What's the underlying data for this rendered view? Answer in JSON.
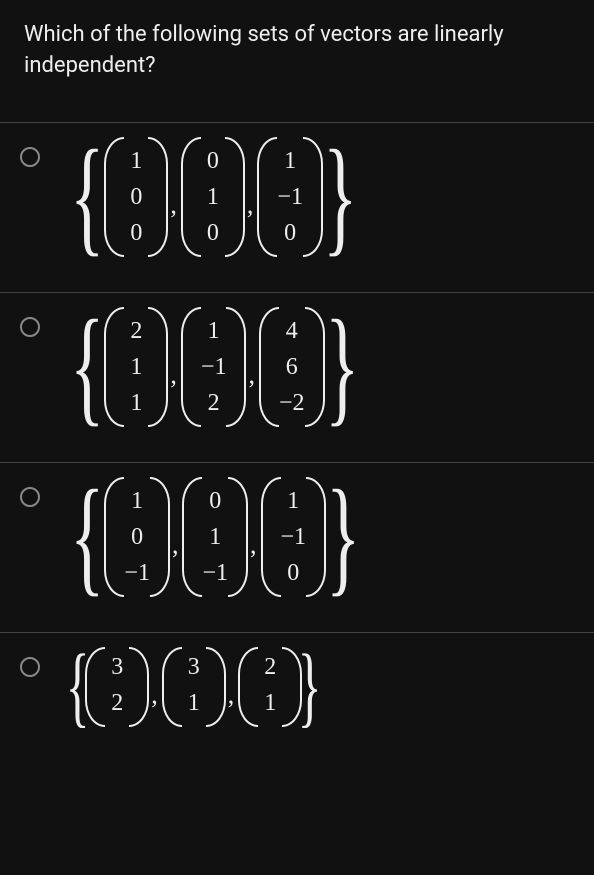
{
  "question": "Which of the following sets of vectors are linearly independent?",
  "options": [
    {
      "vectors": [
        [
          "1",
          "0",
          "0"
        ],
        [
          "0",
          "1",
          "0"
        ],
        [
          "1",
          "−1",
          "0"
        ]
      ]
    },
    {
      "vectors": [
        [
          "2",
          "1",
          "1"
        ],
        [
          "1",
          "−1",
          "2"
        ],
        [
          "4",
          "6",
          "−2"
        ]
      ]
    },
    {
      "vectors": [
        [
          "1",
          "0",
          "−1"
        ],
        [
          "0",
          "1",
          "−1"
        ],
        [
          "1",
          "−1",
          "0"
        ]
      ]
    },
    {
      "vectors": [
        [
          "3",
          "2"
        ],
        [
          "3",
          "1"
        ],
        [
          "2",
          "1"
        ]
      ],
      "partial": true
    }
  ],
  "colors": {
    "background": "#111111",
    "text": "#eeeeee",
    "divider": "#444444",
    "radio_border": "#888888"
  }
}
